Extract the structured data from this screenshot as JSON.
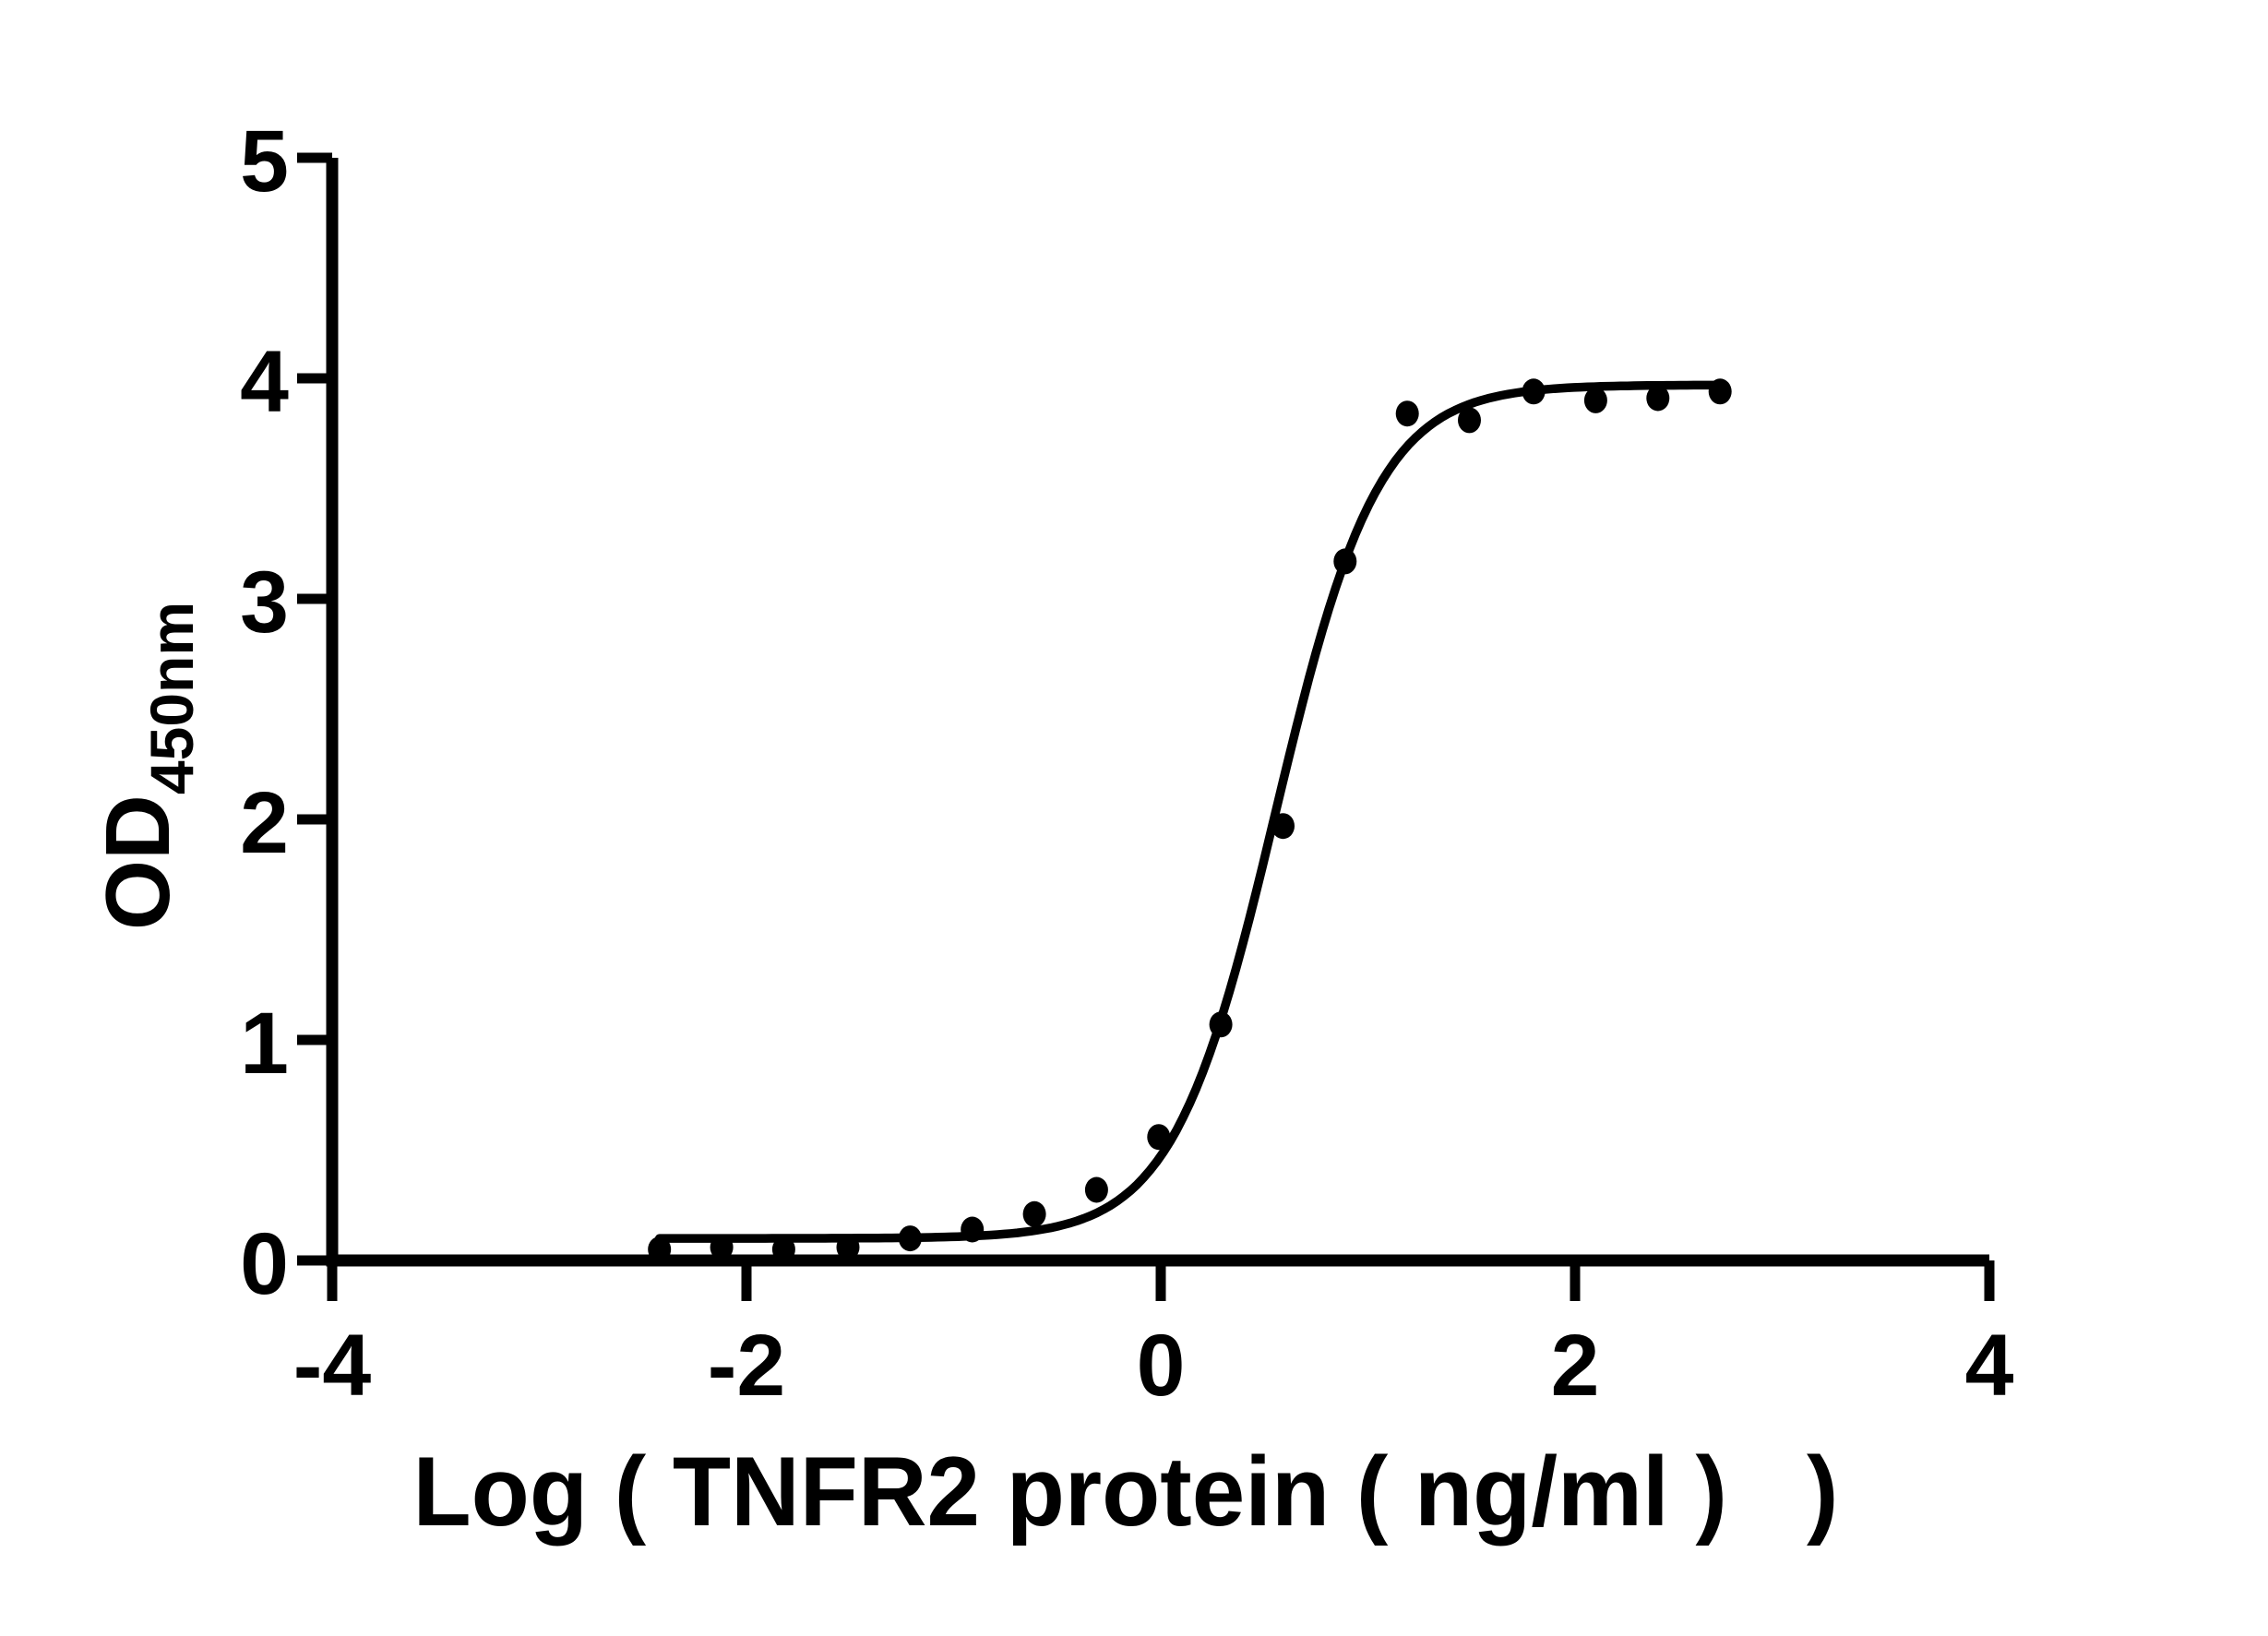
{
  "figure": {
    "background_color": "#ffffff",
    "ink_color": "#000000"
  },
  "chart_data": {
    "type": "scatter",
    "title": "",
    "xlabel": "Log ( TNFR2 protein ( ng/ml )   )",
    "ylabel": {
      "main": "OD",
      "subscript": "450nm"
    },
    "xlim": [
      -4,
      4
    ],
    "ylim": [
      0,
      5
    ],
    "x_ticks": [
      -4,
      -2,
      0,
      2,
      4
    ],
    "y_ticks": [
      0,
      1,
      2,
      3,
      4,
      5
    ],
    "grid": false,
    "legend_position": "none",
    "marker": {
      "shape": "filled-circle",
      "color": "#000000"
    },
    "curve_color": "#000000",
    "x": [
      -2.42,
      -2.12,
      -1.82,
      -1.51,
      -1.21,
      -0.91,
      -0.61,
      -0.31,
      -0.01,
      0.29,
      0.59,
      0.89,
      1.19,
      1.49,
      1.8,
      2.1,
      2.4,
      2.7
    ],
    "y": [
      0.05,
      0.06,
      0.05,
      0.06,
      0.1,
      0.14,
      0.21,
      0.32,
      0.56,
      1.07,
      1.97,
      3.17,
      3.84,
      3.81,
      3.94,
      3.9,
      3.91,
      3.94
    ],
    "fit": {
      "model": "four-parameter logistic sigmoid",
      "bottom": 0.1,
      "top": 3.97,
      "logEC50": 0.555,
      "hill": 1.75,
      "curve_x_start": -2.42,
      "curve_x_end": 2.7
    }
  }
}
